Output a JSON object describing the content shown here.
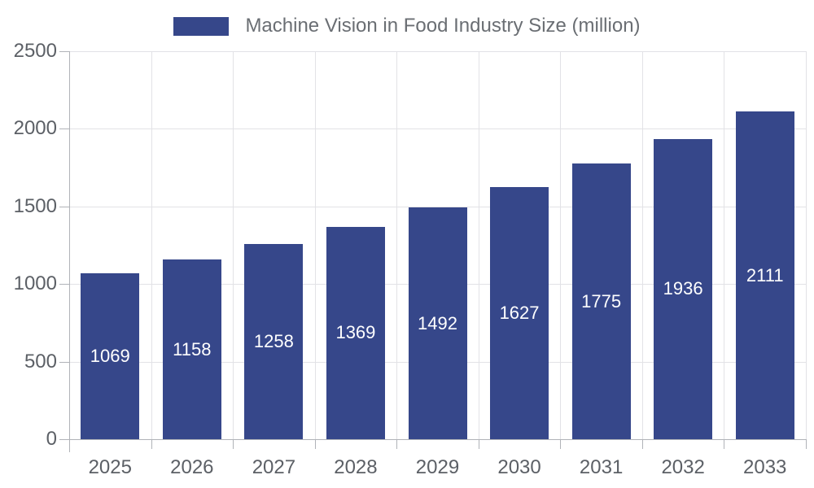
{
  "chart_data": {
    "type": "bar",
    "title": "",
    "categories": [
      "2025",
      "2026",
      "2027",
      "2028",
      "2029",
      "2030",
      "2031",
      "2032",
      "2033"
    ],
    "series": [
      {
        "name": "Machine Vision in Food Industry Size (million)",
        "values": [
          1069,
          1158,
          1258,
          1369,
          1492,
          1627,
          1775,
          1936,
          2111
        ]
      }
    ],
    "xlabel": "",
    "ylabel": "",
    "ylim": [
      0,
      2500
    ],
    "yticks": [
      0,
      500,
      1000,
      1500,
      2000,
      2500
    ],
    "grid": true,
    "legend_position": "top-center",
    "value_labels": "inside-center"
  },
  "colors": {
    "bar": "#36478a",
    "bar_label": "#ffffff",
    "grid_line": "#e2e2e6",
    "axis_line": "#b0b3b8",
    "tick_text": "#5c6066",
    "legend_text": "#6a6e73",
    "background": "#ffffff"
  }
}
